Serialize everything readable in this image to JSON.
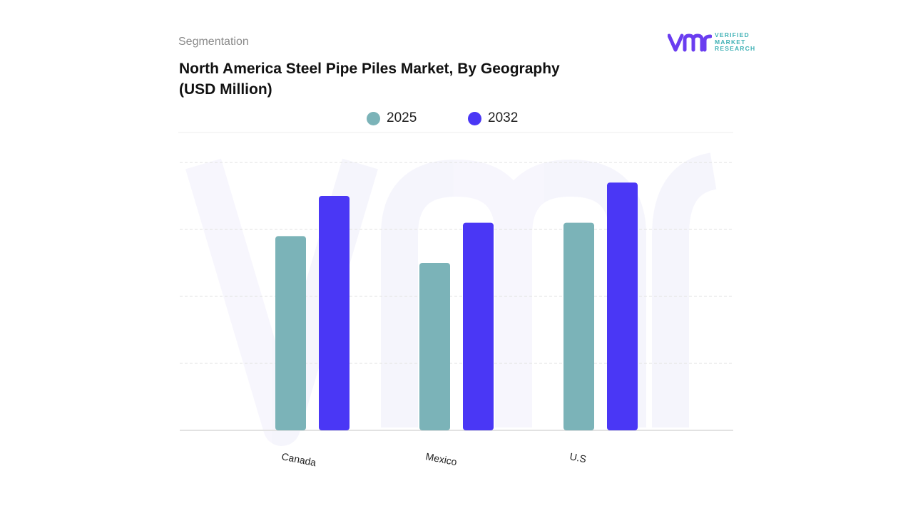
{
  "header": {
    "segment_label": "Segmentation",
    "title_line1": "North America Steel Pipe Piles Market, By Geography",
    "title_line2": "(USD Million)"
  },
  "brand": {
    "name_line1": "VERIFIED",
    "name_line2": "MARKET",
    "name_line3": "RESEARCH",
    "mark_color": "#6a3df0",
    "text_color": "#3fb1b5"
  },
  "chart_data": {
    "type": "bar",
    "title": "North America Steel Pipe Piles Market, By Geography (USD Million)",
    "categories": [
      "Canada",
      "Mexico",
      "U.S"
    ],
    "series": [
      {
        "name": "2025",
        "color": "#7bb3b8",
        "values": [
          2.9,
          2.5,
          3.1
        ]
      },
      {
        "name": "2032",
        "color": "#4a37f5",
        "values": [
          3.5,
          3.1,
          3.7
        ]
      }
    ],
    "ylim": [
      0,
      4
    ],
    "y_tick_labels_shown": false,
    "grid": true,
    "legend_position": "top-center",
    "xlabel": "",
    "ylabel": ""
  }
}
